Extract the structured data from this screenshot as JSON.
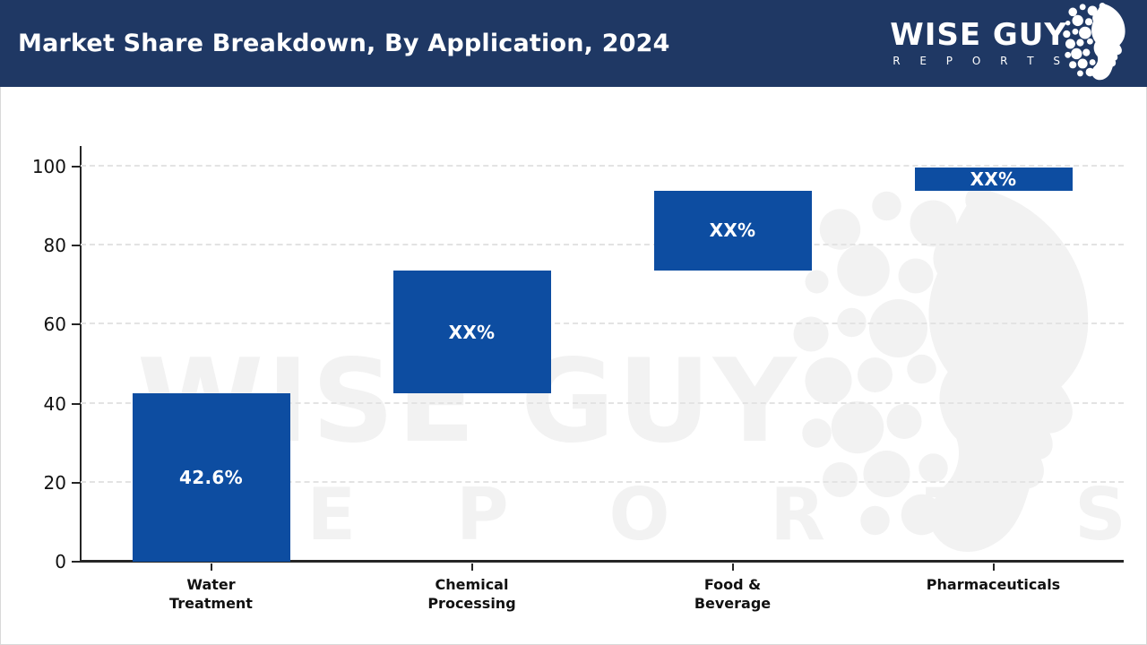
{
  "header": {
    "title": "Market Share Breakdown, By Application, 2024",
    "background_color": "#1f3864",
    "logo": {
      "wordmark": "WISE GUY",
      "subtext": "R E P O R T S"
    }
  },
  "watermark": {
    "line1": "WISE GUY",
    "line2": "R E P O R T S"
  },
  "chart_data": {
    "type": "bar",
    "subtype": "waterfall",
    "title": "Market Share Breakdown, By Application, 2024",
    "xlabel": "",
    "ylabel": "",
    "ylim": [
      0,
      100
    ],
    "yticks": [
      0,
      20,
      40,
      60,
      80,
      100
    ],
    "grid": "horizontal-dashed",
    "legend": "none",
    "bar_color": "#0d4da1",
    "value_label_color": "#ffffff",
    "categories": [
      "Water Treatment",
      "Chemical Processing",
      "Food & Beverage",
      "Pharmaceuticals"
    ],
    "segments": [
      {
        "category": "Water Treatment",
        "start": 0,
        "end": 42.6,
        "label": "42.6%"
      },
      {
        "category": "Chemical Processing",
        "start": 42.6,
        "end": 73.7,
        "label": "XX%"
      },
      {
        "category": "Food & Beverage",
        "start": 73.7,
        "end": 93.9,
        "label": "XX%"
      },
      {
        "category": "Pharmaceuticals",
        "start": 93.9,
        "end": 99.8,
        "label": "XX%"
      }
    ]
  }
}
